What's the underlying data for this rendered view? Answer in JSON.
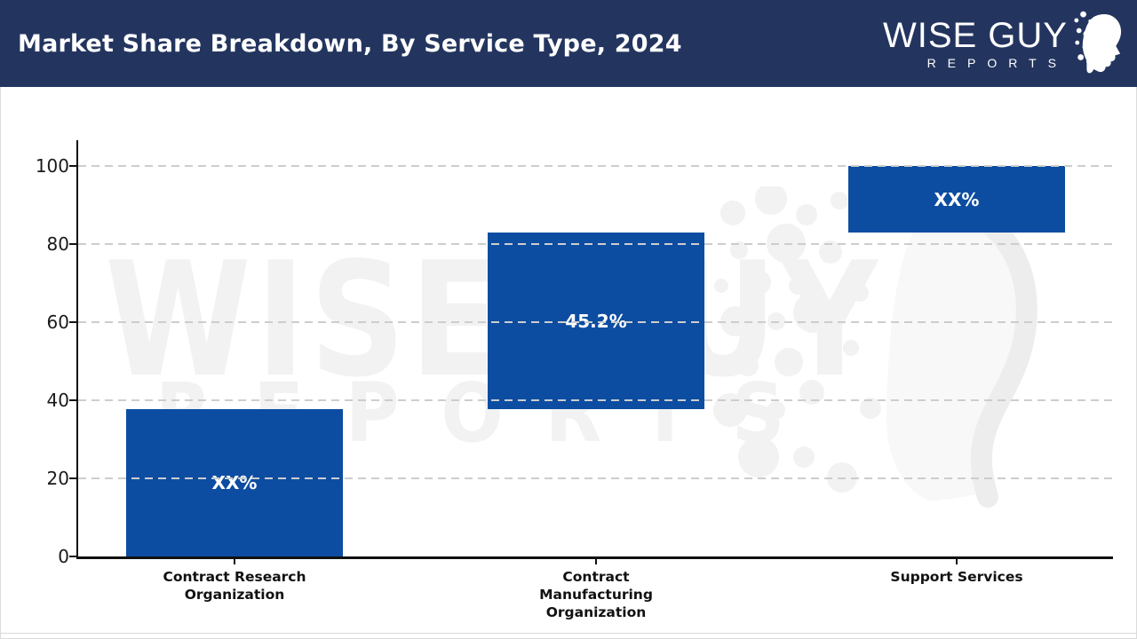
{
  "header": {
    "title": "Market Share Breakdown, By Service Type, 2024",
    "bg_color": "#23355F",
    "logo": {
      "wordmark": "WISE GUY",
      "subtext": "REPORTS"
    }
  },
  "watermark": {
    "wordmark": "WISE GUY",
    "subtext": "REPORTS"
  },
  "chart_data": {
    "type": "bar",
    "subtype": "stacked-waterfall",
    "title": "Market Share Breakdown, By Service Type, 2024",
    "xlabel": "",
    "ylabel": "",
    "ylim": [
      0,
      100
    ],
    "yticks": [
      0,
      20,
      40,
      60,
      80,
      100
    ],
    "grid": "horizontal-dashed",
    "legend": "none",
    "bar_color": "#0C4DA2",
    "label_color": "#ffffff",
    "bars": [
      {
        "category": "Contract Research Organization",
        "category_lines": [
          "Contract Research",
          "Organization"
        ],
        "label": "XX%",
        "start": 0,
        "end": 37.7,
        "segment_value": 37.7
      },
      {
        "category": "Contract Manufacturing Organization",
        "category_lines": [
          "Contract",
          "Manufacturing",
          "Organization"
        ],
        "label": "45.2%",
        "start": 37.7,
        "end": 82.9,
        "segment_value": 45.2
      },
      {
        "category": "Support Services",
        "category_lines": [
          "Support Services"
        ],
        "label": "XX%",
        "start": 82.9,
        "end": 100,
        "segment_value": 17.1
      }
    ]
  }
}
